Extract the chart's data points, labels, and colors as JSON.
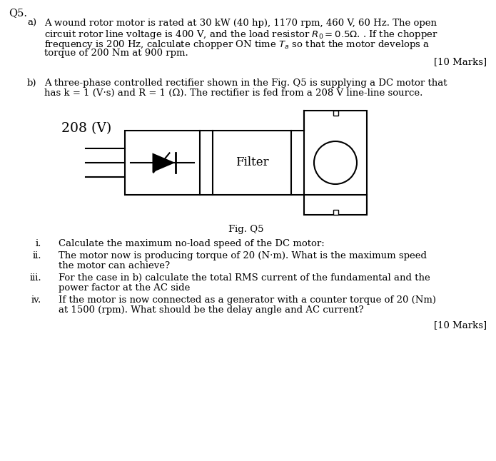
{
  "background_color": "#ffffff",
  "question_number": "Q5.",
  "part_a_label": "a)",
  "part_a_marks": "[10 Marks]",
  "part_b_label": "b)",
  "part_b_marks": "[10 Marks]",
  "voltage_label": "208 (V)",
  "filter_label": "Filter",
  "fig_caption": "Fig. Q5",
  "lines_a": [
    "A wound rotor motor is rated at 30 kW (40 hp), 1170 rpm, 460 V, 60 Hz. The open",
    "circuit rotor line voltage is 400 V, and the load resistor $R_0 = 0.5\\Omega$. . If the chopper",
    "frequency is 200 Hz, calculate chopper ON time $T_a$ so that the motor develops a",
    "torque of 200 Nm at 900 rpm."
  ],
  "lines_b": [
    "A three-phase controlled rectifier shown in the Fig. Q5 is supplying a DC motor that",
    "has k = 1 (V·s) and R = 1 (Ω). The rectifier is fed from a 208 V line-line source."
  ],
  "sub_items": [
    [
      "i.",
      "Calculate the maximum no-load speed of the DC motor:"
    ],
    [
      "ii.",
      "The motor now is producing torque of 20 (N·m). What is the maximum speed",
      "the motor can achieve?"
    ],
    [
      "iii.",
      "For the case in b) calculate the total RMS current of the fundamental and the",
      "power factor at the AC side"
    ],
    [
      "iv.",
      "If the motor is now connected as a generator with a counter torque of 20 (Nm)",
      "at 1500 (rpm). What should be the delay angle and AC current?"
    ]
  ],
  "fs": 9.5,
  "fs_q": 10.5,
  "fs_voltage": 13.5,
  "fs_filter": 12,
  "lh": 14
}
